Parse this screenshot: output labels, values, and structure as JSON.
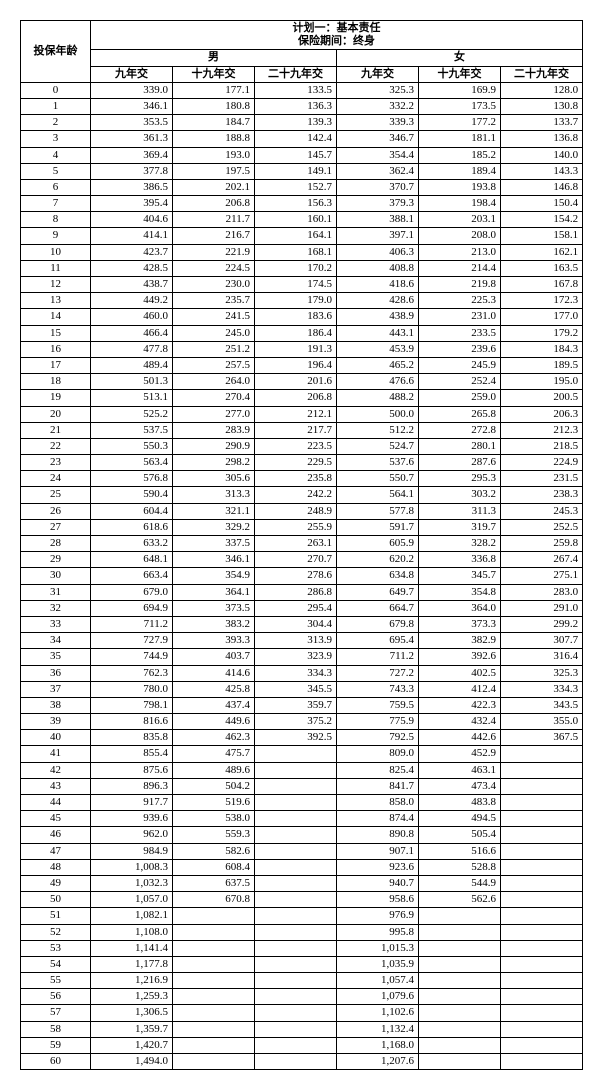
{
  "table": {
    "header": {
      "age_label": "投保年龄",
      "plan_line1": "计划一：基本责任",
      "plan_line2": "保险期间：终身",
      "male": "男",
      "female": "女",
      "col1": "九年交",
      "col2": "十九年交",
      "col3": "二十九年交",
      "col4": "九年交",
      "col5": "十九年交",
      "col6": "二十九年交"
    },
    "background_color": "#ffffff",
    "border_color": "#000000",
    "font_size": 11,
    "rows": [
      {
        "age": "0",
        "c1": "339.0",
        "c2": "177.1",
        "c3": "133.5",
        "c4": "325.3",
        "c5": "169.9",
        "c6": "128.0"
      },
      {
        "age": "1",
        "c1": "346.1",
        "c2": "180.8",
        "c3": "136.3",
        "c4": "332.2",
        "c5": "173.5",
        "c6": "130.8"
      },
      {
        "age": "2",
        "c1": "353.5",
        "c2": "184.7",
        "c3": "139.3",
        "c4": "339.3",
        "c5": "177.2",
        "c6": "133.7"
      },
      {
        "age": "3",
        "c1": "361.3",
        "c2": "188.8",
        "c3": "142.4",
        "c4": "346.7",
        "c5": "181.1",
        "c6": "136.8"
      },
      {
        "age": "4",
        "c1": "369.4",
        "c2": "193.0",
        "c3": "145.7",
        "c4": "354.4",
        "c5": "185.2",
        "c6": "140.0"
      },
      {
        "age": "5",
        "c1": "377.8",
        "c2": "197.5",
        "c3": "149.1",
        "c4": "362.4",
        "c5": "189.4",
        "c6": "143.3"
      },
      {
        "age": "6",
        "c1": "386.5",
        "c2": "202.1",
        "c3": "152.7",
        "c4": "370.7",
        "c5": "193.8",
        "c6": "146.8"
      },
      {
        "age": "7",
        "c1": "395.4",
        "c2": "206.8",
        "c3": "156.3",
        "c4": "379.3",
        "c5": "198.4",
        "c6": "150.4"
      },
      {
        "age": "8",
        "c1": "404.6",
        "c2": "211.7",
        "c3": "160.1",
        "c4": "388.1",
        "c5": "203.1",
        "c6": "154.2"
      },
      {
        "age": "9",
        "c1": "414.1",
        "c2": "216.7",
        "c3": "164.1",
        "c4": "397.1",
        "c5": "208.0",
        "c6": "158.1"
      },
      {
        "age": "10",
        "c1": "423.7",
        "c2": "221.9",
        "c3": "168.1",
        "c4": "406.3",
        "c5": "213.0",
        "c6": "162.1"
      },
      {
        "age": "11",
        "c1": "428.5",
        "c2": "224.5",
        "c3": "170.2",
        "c4": "408.8",
        "c5": "214.4",
        "c6": "163.5"
      },
      {
        "age": "12",
        "c1": "438.7",
        "c2": "230.0",
        "c3": "174.5",
        "c4": "418.6",
        "c5": "219.8",
        "c6": "167.8"
      },
      {
        "age": "13",
        "c1": "449.2",
        "c2": "235.7",
        "c3": "179.0",
        "c4": "428.6",
        "c5": "225.3",
        "c6": "172.3"
      },
      {
        "age": "14",
        "c1": "460.0",
        "c2": "241.5",
        "c3": "183.6",
        "c4": "438.9",
        "c5": "231.0",
        "c6": "177.0"
      },
      {
        "age": "15",
        "c1": "466.4",
        "c2": "245.0",
        "c3": "186.4",
        "c4": "443.1",
        "c5": "233.5",
        "c6": "179.2"
      },
      {
        "age": "16",
        "c1": "477.8",
        "c2": "251.2",
        "c3": "191.3",
        "c4": "453.9",
        "c5": "239.6",
        "c6": "184.3"
      },
      {
        "age": "17",
        "c1": "489.4",
        "c2": "257.5",
        "c3": "196.4",
        "c4": "465.2",
        "c5": "245.9",
        "c6": "189.5"
      },
      {
        "age": "18",
        "c1": "501.3",
        "c2": "264.0",
        "c3": "201.6",
        "c4": "476.6",
        "c5": "252.4",
        "c6": "195.0"
      },
      {
        "age": "19",
        "c1": "513.1",
        "c2": "270.4",
        "c3": "206.8",
        "c4": "488.2",
        "c5": "259.0",
        "c6": "200.5"
      },
      {
        "age": "20",
        "c1": "525.2",
        "c2": "277.0",
        "c3": "212.1",
        "c4": "500.0",
        "c5": "265.8",
        "c6": "206.3"
      },
      {
        "age": "21",
        "c1": "537.5",
        "c2": "283.9",
        "c3": "217.7",
        "c4": "512.2",
        "c5": "272.8",
        "c6": "212.3"
      },
      {
        "age": "22",
        "c1": "550.3",
        "c2": "290.9",
        "c3": "223.5",
        "c4": "524.7",
        "c5": "280.1",
        "c6": "218.5"
      },
      {
        "age": "23",
        "c1": "563.4",
        "c2": "298.2",
        "c3": "229.5",
        "c4": "537.6",
        "c5": "287.6",
        "c6": "224.9"
      },
      {
        "age": "24",
        "c1": "576.8",
        "c2": "305.6",
        "c3": "235.8",
        "c4": "550.7",
        "c5": "295.3",
        "c6": "231.5"
      },
      {
        "age": "25",
        "c1": "590.4",
        "c2": "313.3",
        "c3": "242.2",
        "c4": "564.1",
        "c5": "303.2",
        "c6": "238.3"
      },
      {
        "age": "26",
        "c1": "604.4",
        "c2": "321.1",
        "c3": "248.9",
        "c4": "577.8",
        "c5": "311.3",
        "c6": "245.3"
      },
      {
        "age": "27",
        "c1": "618.6",
        "c2": "329.2",
        "c3": "255.9",
        "c4": "591.7",
        "c5": "319.7",
        "c6": "252.5"
      },
      {
        "age": "28",
        "c1": "633.2",
        "c2": "337.5",
        "c3": "263.1",
        "c4": "605.9",
        "c5": "328.2",
        "c6": "259.8"
      },
      {
        "age": "29",
        "c1": "648.1",
        "c2": "346.1",
        "c3": "270.7",
        "c4": "620.2",
        "c5": "336.8",
        "c6": "267.4"
      },
      {
        "age": "30",
        "c1": "663.4",
        "c2": "354.9",
        "c3": "278.6",
        "c4": "634.8",
        "c5": "345.7",
        "c6": "275.1"
      },
      {
        "age": "31",
        "c1": "679.0",
        "c2": "364.1",
        "c3": "286.8",
        "c4": "649.7",
        "c5": "354.8",
        "c6": "283.0"
      },
      {
        "age": "32",
        "c1": "694.9",
        "c2": "373.5",
        "c3": "295.4",
        "c4": "664.7",
        "c5": "364.0",
        "c6": "291.0"
      },
      {
        "age": "33",
        "c1": "711.2",
        "c2": "383.2",
        "c3": "304.4",
        "c4": "679.8",
        "c5": "373.3",
        "c6": "299.2"
      },
      {
        "age": "34",
        "c1": "727.9",
        "c2": "393.3",
        "c3": "313.9",
        "c4": "695.4",
        "c5": "382.9",
        "c6": "307.7"
      },
      {
        "age": "35",
        "c1": "744.9",
        "c2": "403.7",
        "c3": "323.9",
        "c4": "711.2",
        "c5": "392.6",
        "c6": "316.4"
      },
      {
        "age": "36",
        "c1": "762.3",
        "c2": "414.6",
        "c3": "334.3",
        "c4": "727.2",
        "c5": "402.5",
        "c6": "325.3"
      },
      {
        "age": "37",
        "c1": "780.0",
        "c2": "425.8",
        "c3": "345.5",
        "c4": "743.3",
        "c5": "412.4",
        "c6": "334.3"
      },
      {
        "age": "38",
        "c1": "798.1",
        "c2": "437.4",
        "c3": "359.7",
        "c4": "759.5",
        "c5": "422.3",
        "c6": "343.5"
      },
      {
        "age": "39",
        "c1": "816.6",
        "c2": "449.6",
        "c3": "375.2",
        "c4": "775.9",
        "c5": "432.4",
        "c6": "355.0"
      },
      {
        "age": "40",
        "c1": "835.8",
        "c2": "462.3",
        "c3": "392.5",
        "c4": "792.5",
        "c5": "442.6",
        "c6": "367.5"
      },
      {
        "age": "41",
        "c1": "855.4",
        "c2": "475.7",
        "c3": "",
        "c4": "809.0",
        "c5": "452.9",
        "c6": ""
      },
      {
        "age": "42",
        "c1": "875.6",
        "c2": "489.6",
        "c3": "",
        "c4": "825.4",
        "c5": "463.1",
        "c6": ""
      },
      {
        "age": "43",
        "c1": "896.3",
        "c2": "504.2",
        "c3": "",
        "c4": "841.7",
        "c5": "473.4",
        "c6": ""
      },
      {
        "age": "44",
        "c1": "917.7",
        "c2": "519.6",
        "c3": "",
        "c4": "858.0",
        "c5": "483.8",
        "c6": ""
      },
      {
        "age": "45",
        "c1": "939.6",
        "c2": "538.0",
        "c3": "",
        "c4": "874.4",
        "c5": "494.5",
        "c6": ""
      },
      {
        "age": "46",
        "c1": "962.0",
        "c2": "559.3",
        "c3": "",
        "c4": "890.8",
        "c5": "505.4",
        "c6": ""
      },
      {
        "age": "47",
        "c1": "984.9",
        "c2": "582.6",
        "c3": "",
        "c4": "907.1",
        "c5": "516.6",
        "c6": ""
      },
      {
        "age": "48",
        "c1": "1,008.3",
        "c2": "608.4",
        "c3": "",
        "c4": "923.6",
        "c5": "528.8",
        "c6": ""
      },
      {
        "age": "49",
        "c1": "1,032.3",
        "c2": "637.5",
        "c3": "",
        "c4": "940.7",
        "c5": "544.9",
        "c6": ""
      },
      {
        "age": "50",
        "c1": "1,057.0",
        "c2": "670.8",
        "c3": "",
        "c4": "958.6",
        "c5": "562.6",
        "c6": ""
      },
      {
        "age": "51",
        "c1": "1,082.1",
        "c2": "",
        "c3": "",
        "c4": "976.9",
        "c5": "",
        "c6": ""
      },
      {
        "age": "52",
        "c1": "1,108.0",
        "c2": "",
        "c3": "",
        "c4": "995.8",
        "c5": "",
        "c6": ""
      },
      {
        "age": "53",
        "c1": "1,141.4",
        "c2": "",
        "c3": "",
        "c4": "1,015.3",
        "c5": "",
        "c6": ""
      },
      {
        "age": "54",
        "c1": "1,177.8",
        "c2": "",
        "c3": "",
        "c4": "1,035.9",
        "c5": "",
        "c6": ""
      },
      {
        "age": "55",
        "c1": "1,216.9",
        "c2": "",
        "c3": "",
        "c4": "1,057.4",
        "c5": "",
        "c6": ""
      },
      {
        "age": "56",
        "c1": "1,259.3",
        "c2": "",
        "c3": "",
        "c4": "1,079.6",
        "c5": "",
        "c6": ""
      },
      {
        "age": "57",
        "c1": "1,306.5",
        "c2": "",
        "c3": "",
        "c4": "1,102.6",
        "c5": "",
        "c6": ""
      },
      {
        "age": "58",
        "c1": "1,359.7",
        "c2": "",
        "c3": "",
        "c4": "1,132.4",
        "c5": "",
        "c6": ""
      },
      {
        "age": "59",
        "c1": "1,420.7",
        "c2": "",
        "c3": "",
        "c4": "1,168.0",
        "c5": "",
        "c6": ""
      },
      {
        "age": "60",
        "c1": "1,494.0",
        "c2": "",
        "c3": "",
        "c4": "1,207.6",
        "c5": "",
        "c6": ""
      }
    ]
  }
}
